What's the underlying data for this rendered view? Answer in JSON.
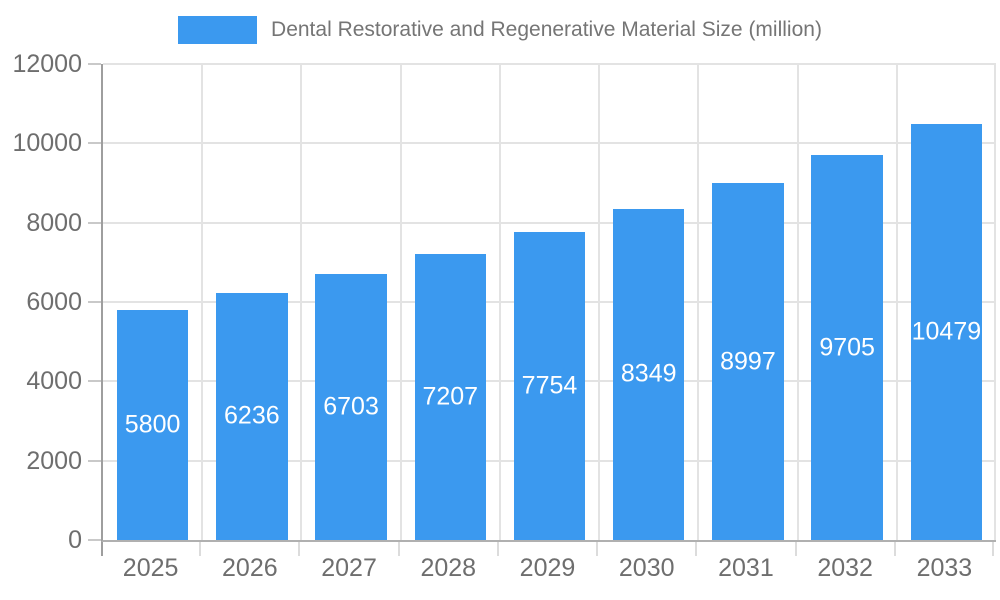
{
  "legend": {
    "label": "Dental Restorative and Regenerative Material Size (million)",
    "swatch_color": "#3B99EF"
  },
  "chart_data": {
    "type": "bar",
    "title": "Dental Restorative and Regenerative Material Size (million)",
    "series_name": "Dental Restorative and Regenerative Material Size (million)",
    "categories": [
      "2025",
      "2026",
      "2027",
      "2028",
      "2029",
      "2030",
      "2031",
      "2032",
      "2033"
    ],
    "values": [
      5800,
      6236,
      6703,
      7207,
      7754,
      8349,
      8997,
      9705,
      10479
    ],
    "value_labels": [
      "5800",
      "6236",
      "6703",
      "7207",
      "7754",
      "8349",
      "8997",
      "9705",
      "10479"
    ],
    "xlabel": "",
    "ylabel": "",
    "ylim": [
      0,
      12000
    ],
    "yticks": [
      0,
      2000,
      4000,
      6000,
      8000,
      10000,
      12000
    ],
    "grid": true,
    "legend_position": "top",
    "bar_color": "#3B99EF",
    "value_label_color": "#ffffff",
    "axis_label_color": "#6e6e6e",
    "gridline_color": "#e3e3e3",
    "axis_line_color": "#9e9e9e"
  }
}
